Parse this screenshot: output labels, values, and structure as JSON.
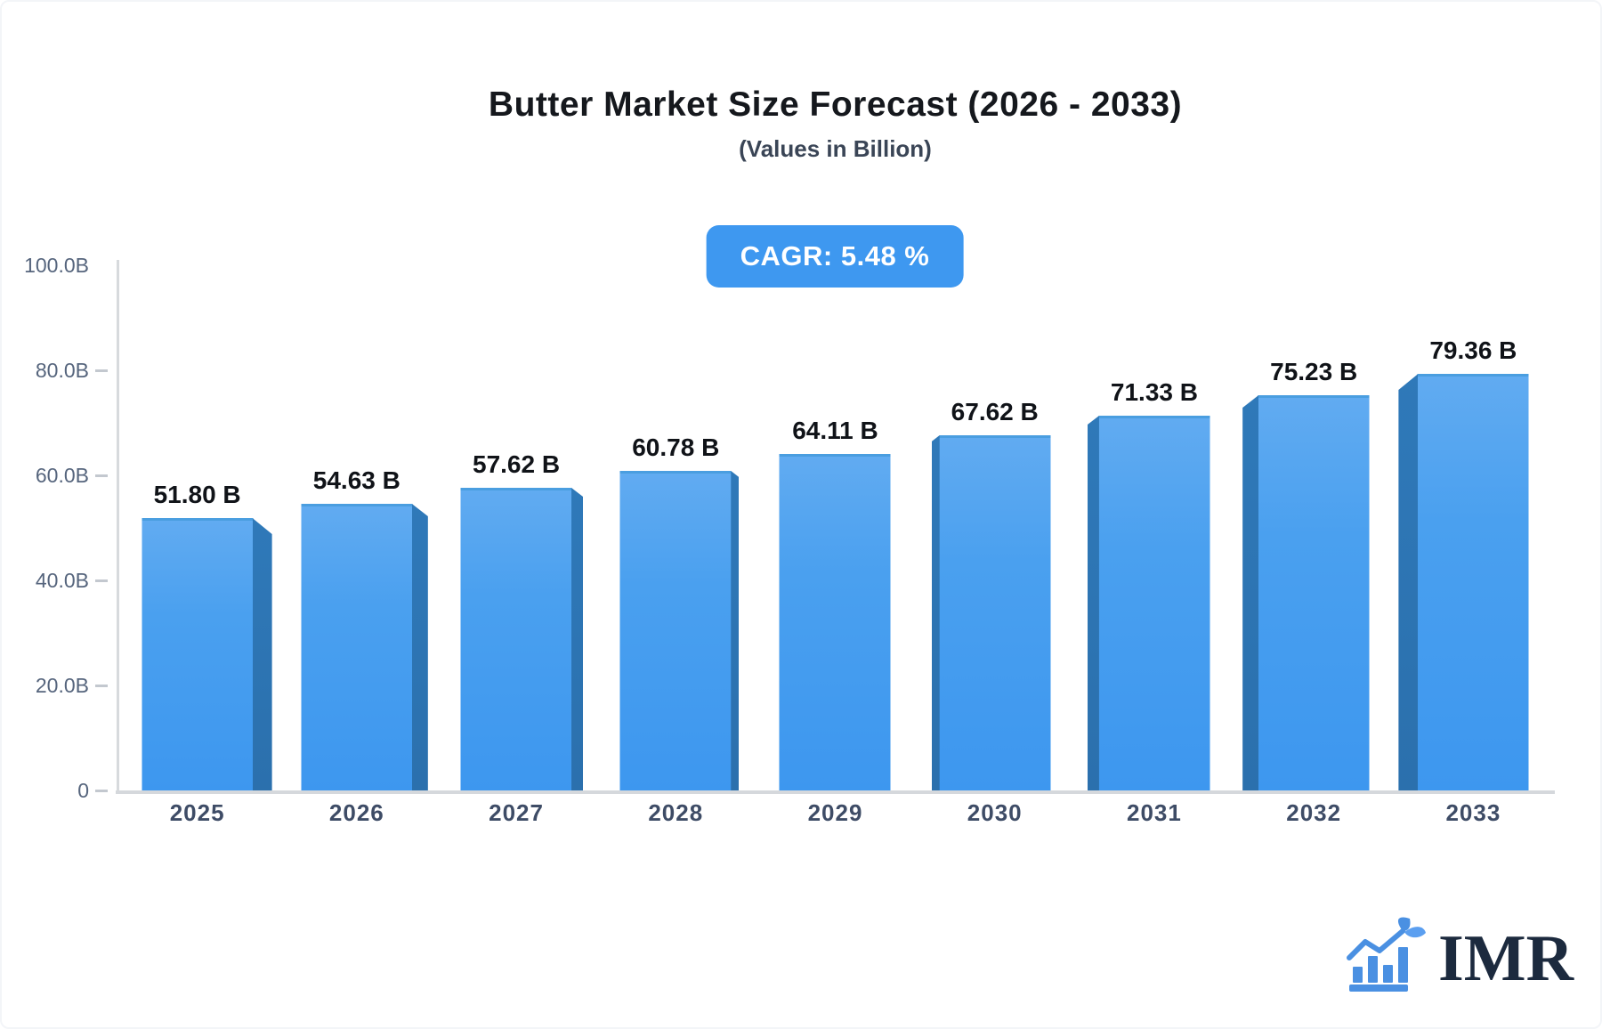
{
  "title": "Butter Market Size Forecast (2026 - 2033)",
  "subtitle": "(Values in Billion)",
  "cagr_badge": "CAGR: 5.48 %",
  "logo": {
    "text": "IMR"
  },
  "colors": {
    "bar_face_top": "#61abf1",
    "bar_face_bottom": "#3d97ef",
    "bar_side": "#2d74b3",
    "badge_background": "#3e98f0",
    "axis_line": "#d5d8dc",
    "logo_blue": "#4a90e2",
    "logo_navy": "#1c2a3e"
  },
  "chart_data": {
    "type": "bar",
    "title": "Butter Market Size Forecast (2026 - 2033)",
    "subtitle": "(Values in Billion)",
    "categories": [
      "2025",
      "2026",
      "2027",
      "2028",
      "2029",
      "2030",
      "2031",
      "2032",
      "2033"
    ],
    "values": [
      51.8,
      54.63,
      57.62,
      60.78,
      64.11,
      67.62,
      71.33,
      75.23,
      79.36
    ],
    "value_labels": [
      "51.80 B",
      "54.63 B",
      "57.62 B",
      "60.78 B",
      "64.11 B",
      "67.62 B",
      "71.33 B",
      "75.23 B",
      "79.36 B"
    ],
    "xlabel": "",
    "ylabel": "",
    "ylim": [
      0,
      100
    ],
    "yticks": [
      {
        "label": "100.0B",
        "value": 100
      },
      {
        "label": "80.0B",
        "value": 80
      },
      {
        "label": "60.0B",
        "value": 60
      },
      {
        "label": "40.0B",
        "value": 40
      },
      {
        "label": "20.0B",
        "value": 20
      },
      {
        "label": "0",
        "value": 0
      }
    ],
    "grid": false,
    "legend": false,
    "bar_style": "3d-perspective-center"
  }
}
